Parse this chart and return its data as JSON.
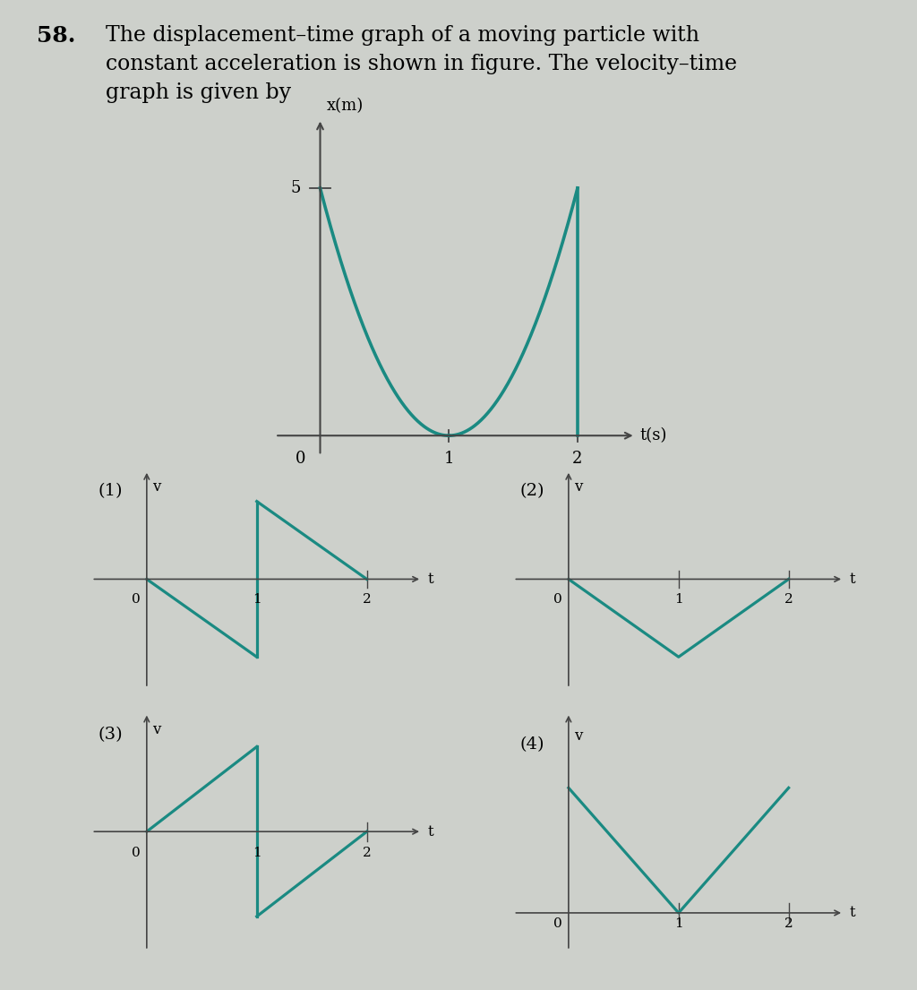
{
  "title_num": "58.",
  "title_text": "The displacement–time graph of a moving particle with\nconstant acceleration is shown in figure. The velocity–time\ngraph is given by",
  "bg_color": "#cdd0cb",
  "teal_color": "#1a8a82",
  "axis_color": "#444444",
  "main_xlabel": "t(s)",
  "main_ylabel": "x(m)",
  "sub_xlabel": "t",
  "sub_ylabel": "v"
}
